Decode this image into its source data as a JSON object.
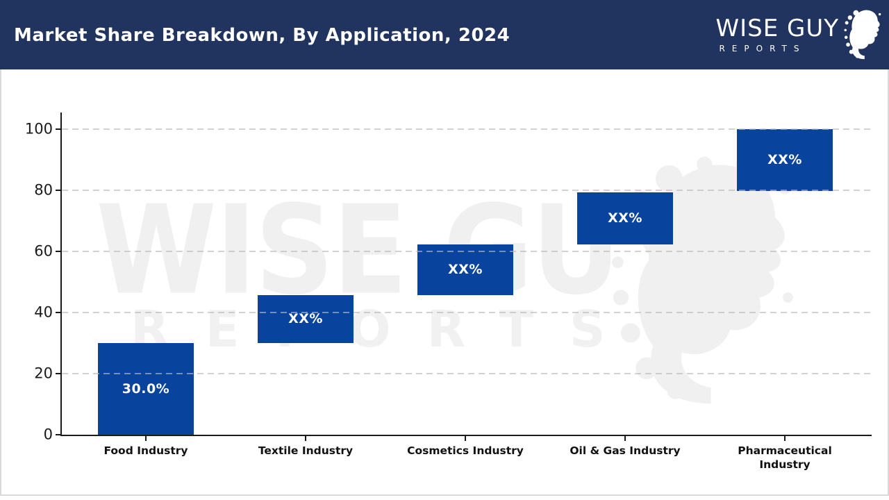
{
  "header": {
    "title": "Market Share Breakdown, By Application, 2024",
    "logo": {
      "name": "WISE GUY",
      "tagline": "REPORTS"
    }
  },
  "watermark": {
    "name": "WISE GUY",
    "tagline": "REPORTS"
  },
  "colors": {
    "header_bg": "#21335f",
    "bar": "#08439e",
    "axis": "#1a1a1a",
    "gridline": "#d9d9d9",
    "watermark": "#f0f0f0",
    "title_text": "#ffffff",
    "bar_label_text": "#ffffff"
  },
  "chart_data": {
    "type": "bar",
    "subtype": "waterfall",
    "title": "Market Share Breakdown, By Application, 2024",
    "categories": [
      "Food Industry",
      "Textile Industry",
      "Cosmetics Industry",
      "Oil & Gas Industry",
      "Pharmaceutical Industry"
    ],
    "segments": [
      {
        "category": "Food Industry",
        "start": 0,
        "end": 30,
        "label": "30.0%"
      },
      {
        "category": "Textile Industry",
        "start": 30,
        "end": 45.7,
        "label": "XX%"
      },
      {
        "category": "Cosmetics Industry",
        "start": 45.7,
        "end": 62.3,
        "label": "XX%"
      },
      {
        "category": "Oil & Gas Industry",
        "start": 62.3,
        "end": 79.4,
        "label": "XX%"
      },
      {
        "category": "Pharmaceutical Industry",
        "start": 79.8,
        "end": 100,
        "label": "XX%"
      }
    ],
    "xlabel": "",
    "ylabel": "",
    "ylim": [
      0,
      105
    ],
    "yticks": [
      0,
      20,
      40,
      60,
      80,
      100
    ],
    "grid": "horizontal-dashed",
    "legend": "none",
    "bar_color": "#08439e"
  }
}
